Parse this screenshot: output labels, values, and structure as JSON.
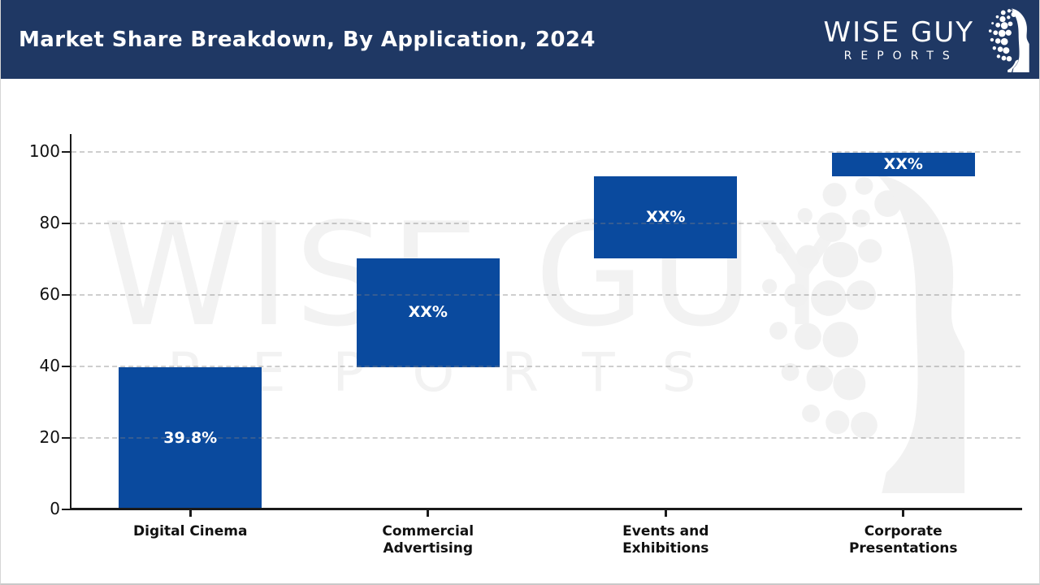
{
  "header": {
    "title": "Market Share Breakdown, By Application, 2024",
    "bg_color": "#1f3864",
    "logo": {
      "wordmark": "WISE GUY",
      "subtext": "REPORTS"
    }
  },
  "watermark": {
    "wordmark": "WISE GUY",
    "subtext": "REPORTS"
  },
  "chart_data": {
    "type": "bar",
    "subtype": "waterfall",
    "title": "Market Share Breakdown, By Application, 2024",
    "categories": [
      "Digital Cinema",
      "Commercial\nAdvertising",
      "Events and\nExhibitions",
      "Corporate\nPresentations"
    ],
    "segments": [
      {
        "category": "Digital Cinema",
        "start": 0,
        "end": 39.8,
        "value_label": "39.8%"
      },
      {
        "category": "Commercial Advertising",
        "start": 39.8,
        "end": 70.3,
        "value_label": "XX%"
      },
      {
        "category": "Events and Exhibitions",
        "start": 70.3,
        "end": 93.1,
        "value_label": "XX%"
      },
      {
        "category": "Corporate Presentations",
        "start": 93.1,
        "end": 99.8,
        "value_label": "XX%"
      }
    ],
    "yticks": [
      0,
      20,
      40,
      60,
      80,
      100
    ],
    "ylim": [
      0,
      105
    ],
    "xlabel": "",
    "ylabel": "",
    "bar_color": "#0a4a9e",
    "grid": {
      "axis": "y",
      "style": "dashed",
      "on": true
    },
    "legend": "none"
  }
}
